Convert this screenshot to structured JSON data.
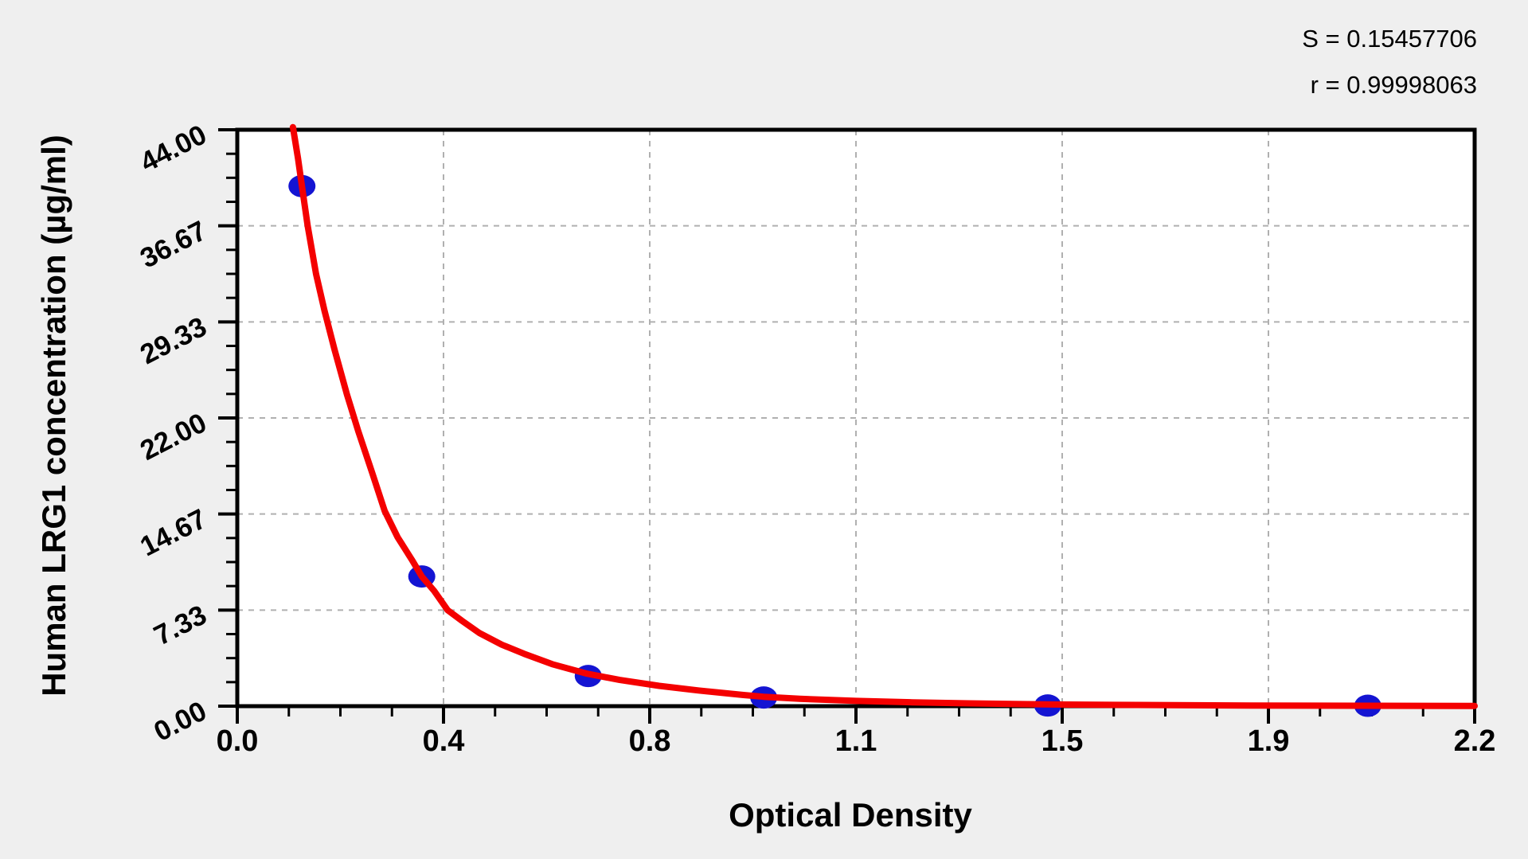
{
  "stats": {
    "s": "S = 0.15457706",
    "r": "r = 0.99998063"
  },
  "chart_data": {
    "type": "scatter",
    "title": "",
    "xlabel": "Optical Density",
    "ylabel": "Human LRG1 concentration (µg/ml)",
    "xlim": [
      0,
      2.2
    ],
    "ylim": [
      0,
      44
    ],
    "x_tick_labels": [
      "0.0",
      "0.4",
      "0.8",
      "1.1",
      "1.5",
      "1.9",
      "2.2"
    ],
    "y_tick_labels": [
      "0.00",
      "7.33",
      "14.67",
      "22.00",
      "29.33",
      "36.67",
      "44.00"
    ],
    "minor_ticks_per_interval": 3,
    "grid": "dashed-major",
    "legend": "none",
    "annotations": [
      "S = 0.15457706",
      "r = 0.99998063"
    ],
    "series": [
      {
        "name": "standard-points",
        "type": "scatter",
        "points": [
          [
            0.115,
            39.7
          ],
          [
            0.328,
            9.9
          ],
          [
            0.624,
            2.3
          ],
          [
            0.936,
            0.66
          ],
          [
            1.441,
            0.05
          ],
          [
            2.01,
            0.03
          ]
        ]
      },
      {
        "name": "fitted-curve",
        "type": "line",
        "points": [
          [
            0.099,
            44.2
          ],
          [
            0.108,
            41.8
          ],
          [
            0.115,
            39.7
          ],
          [
            0.125,
            36.7
          ],
          [
            0.14,
            33.0
          ],
          [
            0.155,
            30.2
          ],
          [
            0.173,
            27.2
          ],
          [
            0.195,
            23.8
          ],
          [
            0.215,
            21.0
          ],
          [
            0.24,
            17.8
          ],
          [
            0.262,
            14.9
          ],
          [
            0.285,
            12.9
          ],
          [
            0.31,
            11.2
          ],
          [
            0.328,
            9.9
          ],
          [
            0.35,
            8.8
          ],
          [
            0.374,
            7.33
          ],
          [
            0.4,
            6.5
          ],
          [
            0.43,
            5.6
          ],
          [
            0.47,
            4.7
          ],
          [
            0.51,
            4.0
          ],
          [
            0.56,
            3.2
          ],
          [
            0.62,
            2.5
          ],
          [
            0.68,
            2.0
          ],
          [
            0.75,
            1.55
          ],
          [
            0.82,
            1.2
          ],
          [
            0.9,
            0.85
          ],
          [
            0.936,
            0.72
          ],
          [
            1.0,
            0.56
          ],
          [
            1.1,
            0.4
          ],
          [
            1.2,
            0.29
          ],
          [
            1.3,
            0.21
          ],
          [
            1.45,
            0.13
          ],
          [
            1.6,
            0.09
          ],
          [
            1.8,
            0.05
          ],
          [
            2.0,
            0.03
          ],
          [
            2.2,
            0.02
          ]
        ]
      }
    ],
    "colors": {
      "background": "#efefef",
      "plot_bg": "#ffffff",
      "axis": "#000000",
      "grid": "#b0b0b0",
      "curve": "#f40000",
      "points": "#1414d2"
    }
  }
}
